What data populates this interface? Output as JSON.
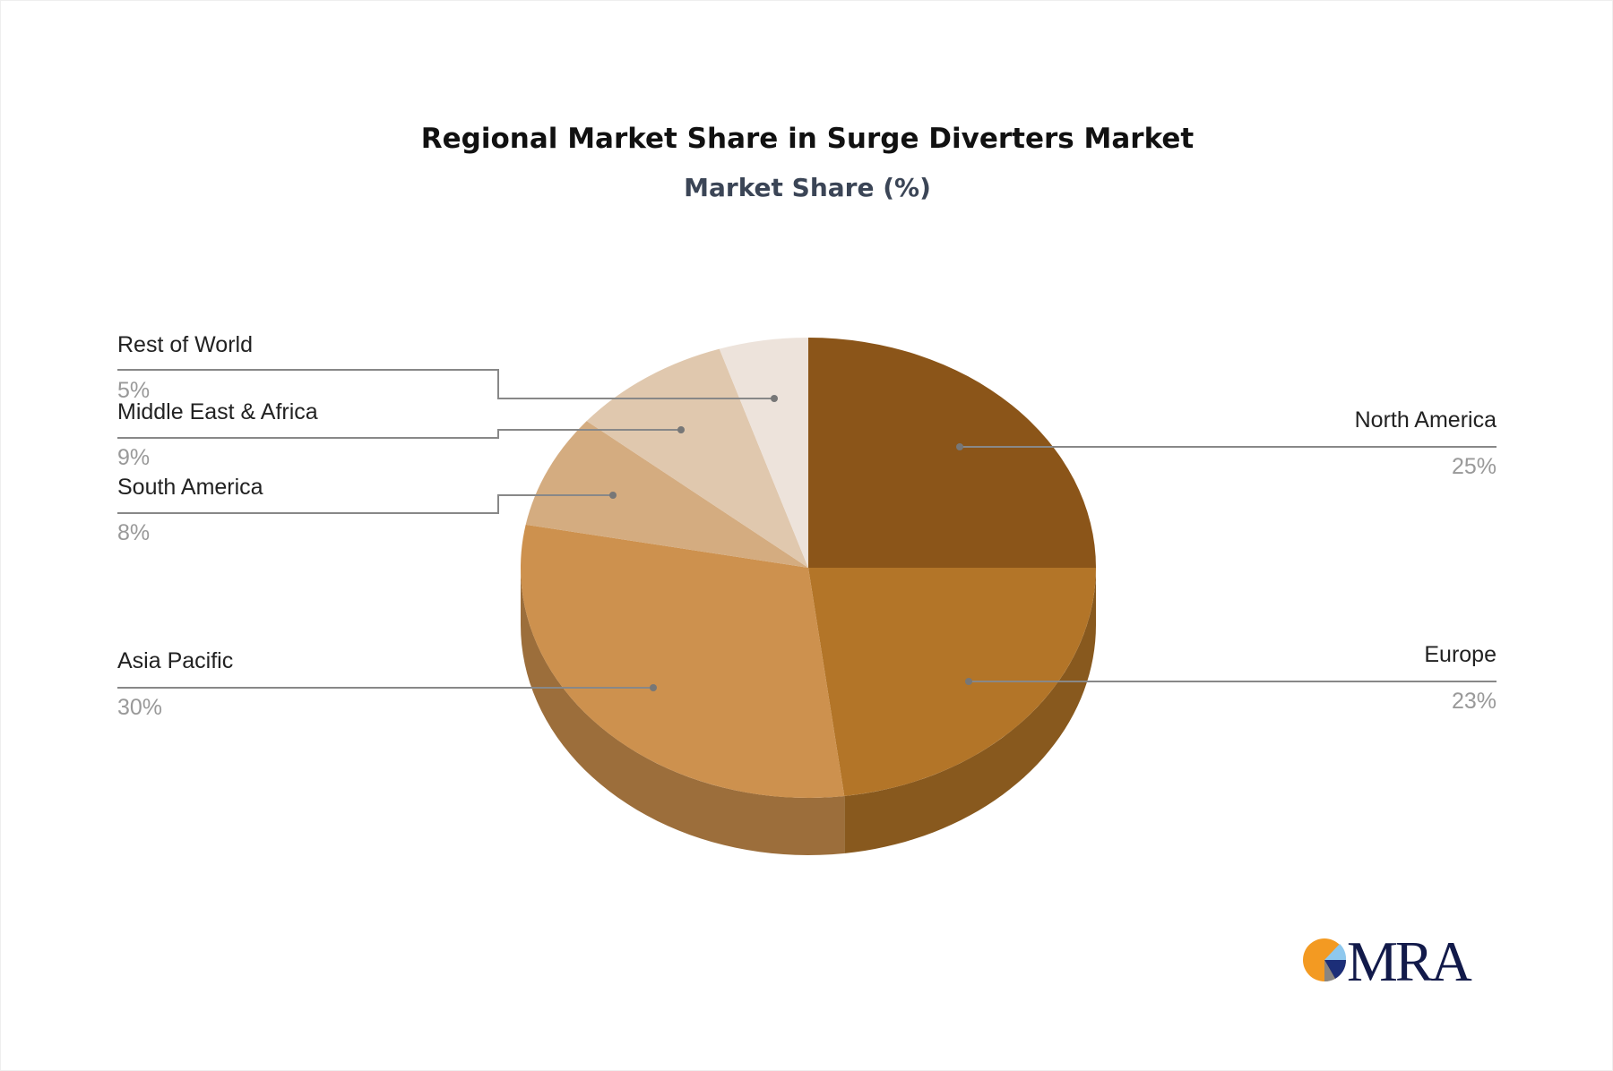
{
  "chart_data": {
    "type": "pie",
    "style": "3d",
    "title": "Regional Market Share in Surge Diverters Market",
    "subtitle": "Market Share (%)",
    "slices": [
      {
        "label": "North America",
        "value": 25,
        "pct_label": "25%",
        "color": "#8B5519",
        "side": "right"
      },
      {
        "label": "Europe",
        "value": 23,
        "pct_label": "23%",
        "color": "#B37528",
        "side": "right"
      },
      {
        "label": "Asia Pacific",
        "value": 30,
        "pct_label": "30%",
        "color": "#CD914E",
        "side": "left"
      },
      {
        "label": "South America",
        "value": 8,
        "pct_label": "8%",
        "color": "#D4AC80",
        "side": "left"
      },
      {
        "label": "Middle East & Africa",
        "value": 9,
        "pct_label": "9%",
        "color": "#E0C8AE",
        "side": "left"
      },
      {
        "label": "Rest of World",
        "value": 5,
        "pct_label": "5%",
        "color": "#EDE3DB",
        "side": "left"
      }
    ]
  },
  "logo": {
    "text": "MRA"
  }
}
